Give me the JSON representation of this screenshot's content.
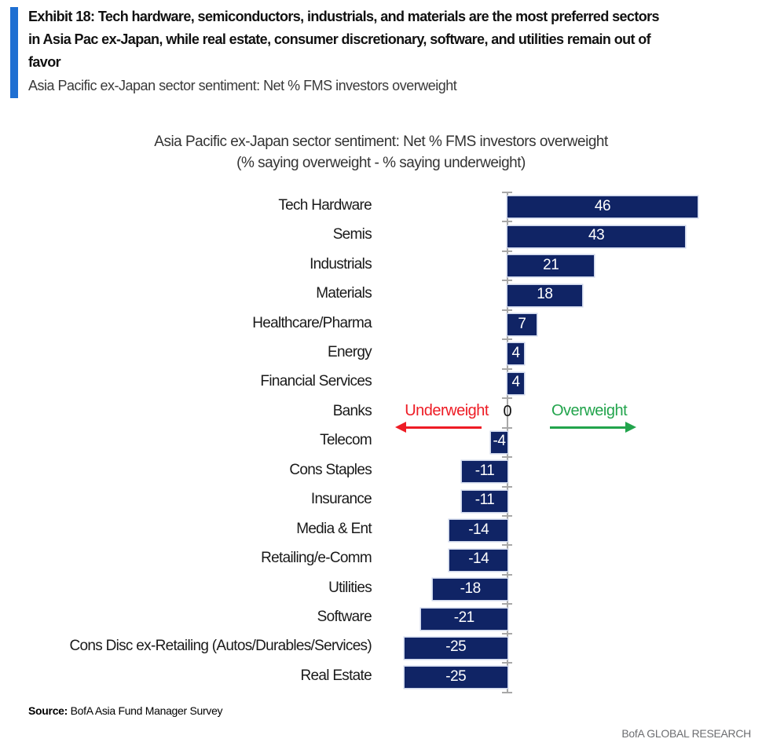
{
  "header": {
    "title_lines": [
      "Exhibit 18: Tech hardware, semiconductors, industrials, and materials are the most preferred sectors",
      "in Asia Pac ex-Japan, while real estate, consumer discretionary, software, and utilities remain out of",
      "favor"
    ],
    "subtitle": "Asia Pacific ex-Japan sector sentiment: Net % FMS investors overweight"
  },
  "chart_data": {
    "type": "bar",
    "orientation": "horizontal",
    "title": "Asia Pacific ex-Japan sector sentiment: Net % FMS investors overweight",
    "subtitle": "(% saying overweight - % saying underweight)",
    "categories": [
      "Tech Hardware",
      "Semis",
      "Industrials",
      "Materials",
      "Healthcare/Pharma",
      "Energy",
      "Financial Services",
      "Banks",
      "Telecom",
      "Cons Staples",
      "Insurance",
      "Media & Ent",
      "Retailing/e-Comm",
      "Utilities",
      "Software",
      "Cons Disc ex-Retailing (Autos/Durables/Services)",
      "Real Estate"
    ],
    "values": [
      46,
      43,
      21,
      18,
      7,
      4,
      4,
      0,
      -4,
      -11,
      -11,
      -14,
      -14,
      -18,
      -21,
      -25,
      -25
    ],
    "zero_label": "0",
    "xlim": [
      -32,
      50
    ],
    "grid": false,
    "legend": "none",
    "annotations": {
      "negative_label": "Underweight",
      "positive_label": "Overweight"
    }
  },
  "colors": {
    "bar": "#102465",
    "bar_border": "#ccd5ea",
    "axis": "#a8a8a8",
    "accent": "#1e6fd2",
    "underweight_red": "#ee1c25",
    "overweight_green": "#22a44c",
    "brand_gray": "#6d6e71"
  },
  "footer": {
    "source_label": "Source:",
    "source_text": " BofA Asia Fund Manager Survey",
    "brand": "BofA GLOBAL RESEARCH"
  }
}
